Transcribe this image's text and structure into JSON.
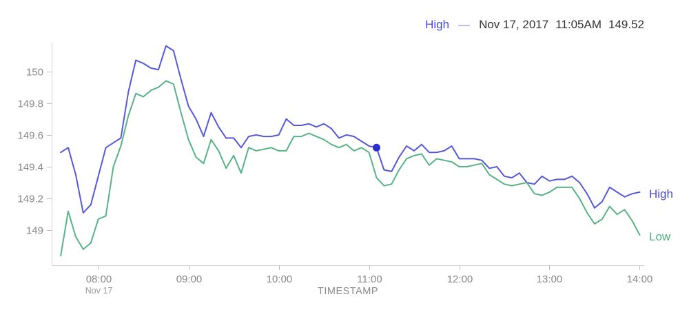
{
  "legend": {
    "series": "High",
    "dash": "—",
    "date": "Nov 17, 2017",
    "time": "11:05AM",
    "value": "149.52"
  },
  "chart_data": {
    "type": "line",
    "title": "",
    "xlabel": "TIMESTAMP",
    "ylabel": "",
    "x_date_label": "Nov 17",
    "grid": false,
    "legend_position": "top-right",
    "xlim": [
      "07:29",
      "14:03"
    ],
    "ylim": [
      148.78,
      150.18
    ],
    "x_ticks": [
      "08:00",
      "09:00",
      "10:00",
      "11:00",
      "12:00",
      "13:00",
      "14:00"
    ],
    "y_ticks": [
      150,
      149.8,
      149.6,
      149.4,
      149.2,
      149
    ],
    "x": [
      "07:35",
      "07:40",
      "07:45",
      "07:50",
      "07:55",
      "08:00",
      "08:05",
      "08:10",
      "08:15",
      "08:20",
      "08:25",
      "08:30",
      "08:35",
      "08:40",
      "08:45",
      "08:50",
      "08:55",
      "09:00",
      "09:05",
      "09:10",
      "09:15",
      "09:20",
      "09:25",
      "09:30",
      "09:35",
      "09:40",
      "09:45",
      "09:50",
      "09:55",
      "10:00",
      "10:05",
      "10:10",
      "10:15",
      "10:20",
      "10:25",
      "10:30",
      "10:35",
      "10:40",
      "10:45",
      "10:50",
      "10:55",
      "11:00",
      "11:05",
      "11:10",
      "11:15",
      "11:20",
      "11:25",
      "11:30",
      "11:35",
      "11:40",
      "11:45",
      "11:50",
      "11:55",
      "12:00",
      "12:05",
      "12:10",
      "12:15",
      "12:20",
      "12:25",
      "12:30",
      "12:35",
      "12:40",
      "12:45",
      "12:50",
      "12:55",
      "13:00",
      "13:05",
      "13:10",
      "13:15",
      "13:20",
      "13:25",
      "13:30",
      "13:35",
      "13:40",
      "13:45",
      "13:50",
      "13:55",
      "14:00"
    ],
    "series": [
      {
        "name": "High",
        "color": "#5558d9",
        "label_color": "#4b4be0",
        "values": [
          149.49,
          149.52,
          149.35,
          149.11,
          149.16,
          149.34,
          149.52,
          149.55,
          149.58,
          149.87,
          150.07,
          150.05,
          150.02,
          150.01,
          150.16,
          150.13,
          149.95,
          149.78,
          149.7,
          149.59,
          149.74,
          149.65,
          149.58,
          149.58,
          149.52,
          149.59,
          149.6,
          149.59,
          149.59,
          149.6,
          149.7,
          149.66,
          149.66,
          149.67,
          149.65,
          149.67,
          149.64,
          149.58,
          149.6,
          149.59,
          149.56,
          149.53,
          149.52,
          149.38,
          149.37,
          149.46,
          149.53,
          149.5,
          149.54,
          149.49,
          149.49,
          149.5,
          149.53,
          149.45,
          149.45,
          149.45,
          149.44,
          149.39,
          149.4,
          149.34,
          149.33,
          149.36,
          149.3,
          149.29,
          149.34,
          149.31,
          149.32,
          149.32,
          149.34,
          149.3,
          149.23,
          149.14,
          149.18,
          149.27,
          149.24,
          149.21,
          149.23,
          149.24
        ]
      },
      {
        "name": "Low",
        "color": "#58b287",
        "label_color": "#4fae7d",
        "values": [
          148.84,
          149.12,
          148.96,
          148.88,
          148.92,
          149.07,
          149.09,
          149.4,
          149.53,
          149.72,
          149.86,
          149.84,
          149.88,
          149.9,
          149.94,
          149.92,
          149.74,
          149.57,
          149.46,
          149.42,
          149.57,
          149.5,
          149.39,
          149.47,
          149.36,
          149.52,
          149.5,
          149.51,
          149.52,
          149.5,
          149.5,
          149.59,
          149.59,
          149.61,
          149.59,
          149.57,
          149.54,
          149.52,
          149.54,
          149.5,
          149.52,
          149.49,
          149.33,
          149.28,
          149.29,
          149.38,
          149.45,
          149.47,
          149.48,
          149.41,
          149.45,
          149.44,
          149.43,
          149.4,
          149.4,
          149.41,
          149.42,
          149.35,
          149.32,
          149.29,
          149.28,
          149.29,
          149.3,
          149.23,
          149.22,
          149.24,
          149.27,
          149.27,
          149.27,
          149.2,
          149.11,
          149.04,
          149.07,
          149.15,
          149.1,
          149.13,
          149.06,
          148.97
        ]
      }
    ],
    "marker": {
      "series": "High",
      "x": "11:05",
      "value": 149.52,
      "color": "#2d2dd4"
    }
  },
  "style": {
    "axis_line_color": "#d4d4d4",
    "tick_mark_color": "#c0c0c0",
    "tick_label_color": "#878787",
    "axis_title_color": "#8a8a8a",
    "sub_label_color": "#9a9a9a"
  }
}
